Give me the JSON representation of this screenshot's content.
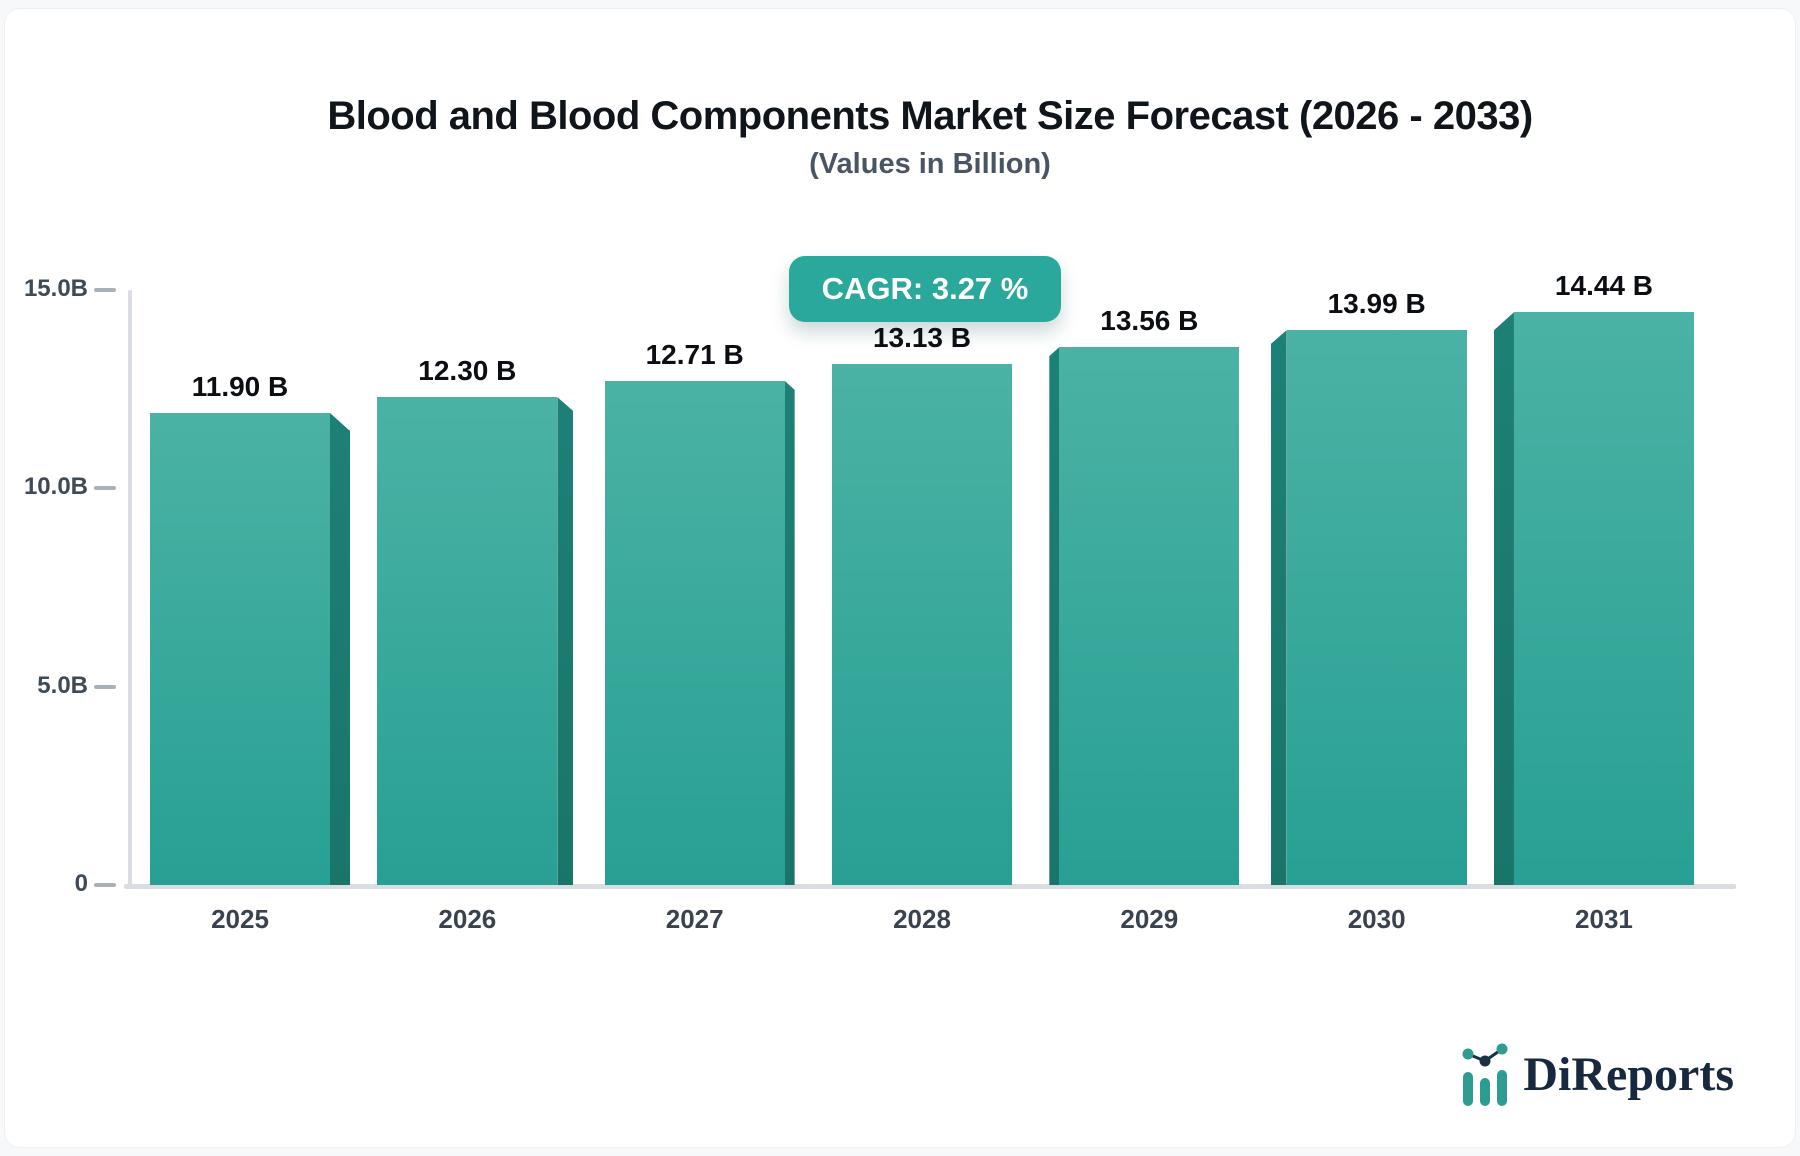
{
  "header": {
    "title": "Blood and Blood Components Market Size Forecast (2026 - 2033)",
    "subtitle": "(Values in Billion)"
  },
  "badge": {
    "label": "CAGR: 3.27 %"
  },
  "logo": {
    "icon": "mini-bar-chart-icon",
    "text": "DiReports"
  },
  "chart_data": {
    "type": "bar",
    "categories": [
      "2025",
      "2026",
      "2027",
      "2028",
      "2029",
      "2030",
      "2031"
    ],
    "values": [
      11.9,
      12.3,
      12.71,
      13.13,
      13.56,
      13.99,
      14.44
    ],
    "value_labels": [
      "11.90 B",
      "12.30 B",
      "12.71 B",
      "13.13 B",
      "13.56 B",
      "13.99 B",
      "14.44 B"
    ],
    "title": "Blood and Blood Components Market Size Forecast (2026 - 2033)",
    "xlabel": "",
    "ylabel": "",
    "ylim": [
      0,
      15
    ],
    "yticks": [
      {
        "value": 0,
        "label": "0"
      },
      {
        "value": 5,
        "label": "5.0B"
      },
      {
        "value": 10,
        "label": "10.0B"
      },
      {
        "value": 15,
        "label": "15.0B"
      }
    ],
    "grid": false,
    "legend": false,
    "colors": {
      "bar_gradient_top": "#4bb2a5",
      "bar_gradient_bottom": "#27a093",
      "bar_side_dark": "#1d8076",
      "bar_side_darker": "#1a7569",
      "badge_background": "#2aa89b",
      "axis_line": "#d9dce2",
      "tick": "#a9b0ba",
      "value_text": "#0b0e12",
      "axis_text": "#3f4a57",
      "logo_teal": "#2e9c90",
      "logo_navy": "#1c3044"
    }
  }
}
